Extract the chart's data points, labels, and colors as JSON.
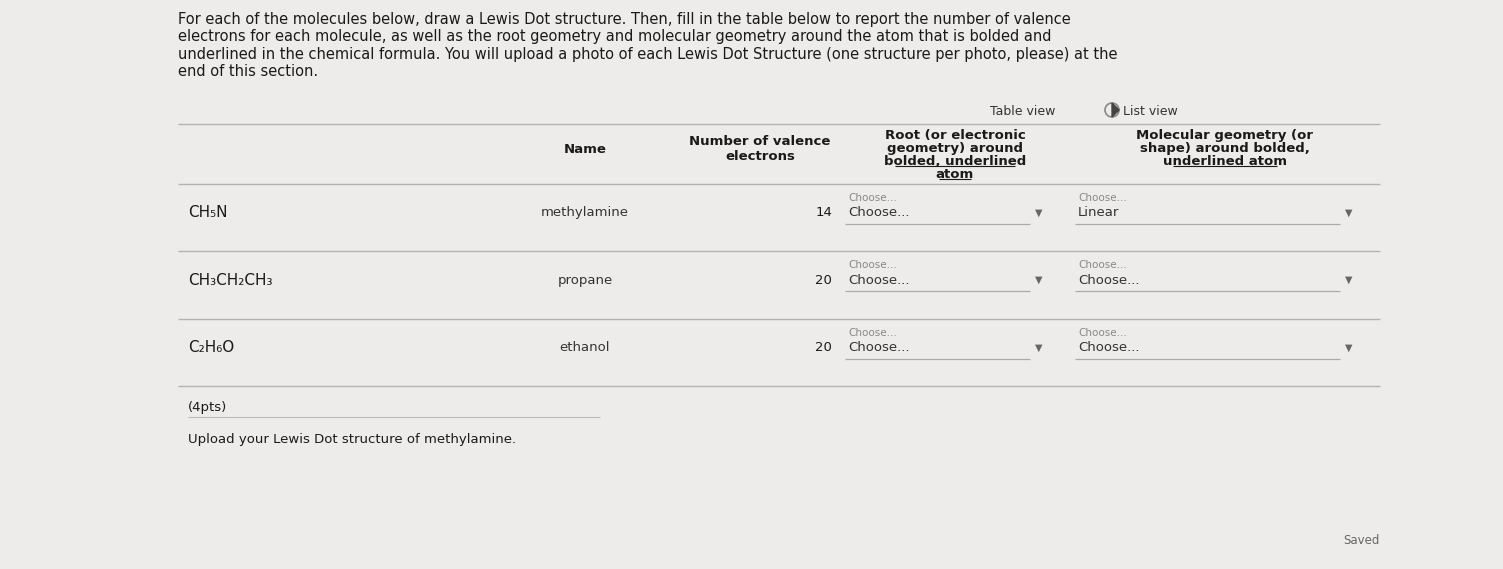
{
  "bg_color": "#edecea",
  "title_text": "For each of the molecules below, draw a Lewis Dot structure. Then, fill in the table below to report the number of valence\nelectrons for each molecule, as well as the root geometry and molecular geometry around the atom that is bolded and\nunderlined in the chemical formula. You will upload a photo of each Lewis Dot Structure (one structure per photo, please) at the\nend of this section.",
  "table_view_text": "Table view",
  "list_view_text": "List view",
  "col_headers_name": "Name",
  "col_headers_valence": "Number of valence\nelectrons",
  "col_headers_root": "Root (or electronic\ngeometry) around\nbolded, underlined\natom",
  "col_headers_mol": "Molecular geometry (or\nshape) around bolded,\nunderlined atom",
  "rows": [
    {
      "formula": "CH₅N",
      "name": "methylamine",
      "valence": "14",
      "root_value": "Choose...",
      "mol_value": "Linear"
    },
    {
      "formula": "CH₃CH₂CH₃",
      "name": "propane",
      "valence": "20",
      "root_value": "Choose...",
      "mol_value": "Choose..."
    },
    {
      "formula": "C₂H₆O",
      "name": "ethanol",
      "valence": "20",
      "root_value": "Choose...",
      "mol_value": "Choose..."
    }
  ],
  "bottom_text_1": "(4pts)",
  "bottom_text_2": "Upload your Lewis Dot structure of methylamine.",
  "saved_text": "Saved",
  "font_size_title": 10.5,
  "font_size_header": 9.5,
  "font_size_body": 9.5,
  "font_size_small": 8.0,
  "font_size_choose": 7.5
}
